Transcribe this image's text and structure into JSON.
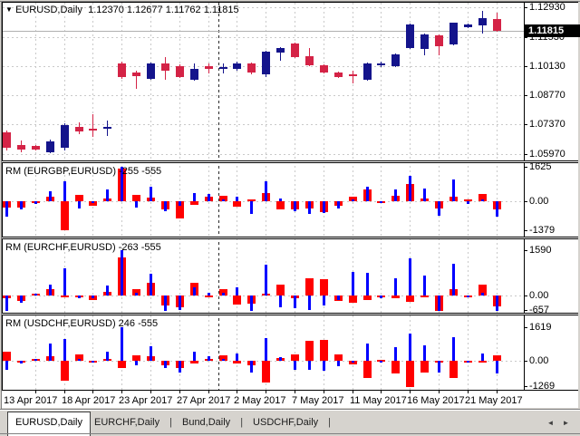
{
  "main_chart": {
    "menu_icon": "▼",
    "title_symbol": "EURUSD,Daily",
    "title_ohlc": "1.12370 1.12677 1.11762 1.11815",
    "current_price": "1.11815",
    "price_scale_ticks": [
      "1.12930",
      "1.11530",
      "1.10130",
      "1.08770",
      "1.07370",
      "1.05970"
    ]
  },
  "indicator_panes": [
    {
      "header": "RM (EURGBP,EURUSD) -255 -555",
      "scale_ticks": [
        "1625",
        "0.00",
        "-1379"
      ]
    },
    {
      "header": "RM (EURCHF,EURUSD) -263 -555",
      "scale_ticks": [
        "1590",
        "0.00",
        "-657"
      ]
    },
    {
      "header": "RM (USDCHF,EURUSD) 246 -555",
      "scale_ticks": [
        "1619",
        "0.00",
        "-1269"
      ]
    }
  ],
  "time_axis": {
    "labels": [
      "13 Apr 2017",
      "18 Apr 2017",
      "23 Apr 2017",
      "27 Apr 2017",
      "2 May 2017",
      "7 May 2017",
      "11 May 2017",
      "16 May 2017",
      "21 May 2017"
    ],
    "label_bar_index": [
      0,
      4,
      8,
      12,
      16,
      20,
      24,
      28,
      32
    ]
  },
  "tabs": {
    "items": [
      "EURUSD,Daily",
      "EURCHF,Daily",
      "Bund,Daily",
      "USDCHF,Daily"
    ],
    "active_index": 0,
    "separator": "|",
    "scroll_left": "◄",
    "scroll_right": "►"
  },
  "colors": {
    "bull_candle": "#14148c",
    "bear_candle": "#d42346",
    "hist_blue": "#0000ff",
    "hist_red": "#ff0000",
    "grid": "#c9c9c9",
    "chart_bg": "#ffffff",
    "chrome": "#d6d3ce",
    "current_price_line": "#b0b0b0"
  },
  "chart_data": [
    {
      "type": "candlestick",
      "title": "EURUSD,Daily",
      "ylim": [
        1.0597,
        1.1293
      ],
      "y_ticks": [
        1.1293,
        1.1153,
        1.1013,
        1.0877,
        1.0737,
        1.0597
      ],
      "current_price": 1.11815,
      "x_tick_labels": [
        "13 Apr 2017",
        "18 Apr 2017",
        "23 Apr 2017",
        "27 Apr 2017",
        "2 May 2017",
        "7 May 2017",
        "11 May 2017",
        "16 May 2017",
        "21 May 2017"
      ],
      "x_tick_bar_index": [
        0,
        4,
        8,
        12,
        16,
        20,
        24,
        28,
        32
      ],
      "month_separator_bar_index": 15,
      "grid": "dashed",
      "ohlc": [
        [
          1.07,
          1.0709,
          1.0614,
          1.0627
        ],
        [
          1.064,
          1.0661,
          1.0606,
          1.0619
        ],
        [
          1.0636,
          1.064,
          1.0614,
          1.0619
        ],
        [
          1.0606,
          1.0665,
          1.0602,
          1.0657
        ],
        [
          1.0627,
          1.0744,
          1.0614,
          1.0735
        ],
        [
          1.0726,
          1.0748,
          1.0692,
          1.0705
        ],
        [
          1.0717,
          1.0786,
          1.0679,
          1.0709
        ],
        [
          1.0717,
          1.0756,
          1.0683,
          1.0726
        ],
        [
          1.1028,
          1.1036,
          1.0955,
          1.0963
        ],
        [
          1.0985,
          1.0994,
          1.0908,
          1.0968
        ],
        [
          1.0955,
          1.1032,
          1.0951,
          1.1028
        ],
        [
          1.1028,
          1.1058,
          1.0951,
          1.0994
        ],
        [
          1.1015,
          1.1024,
          1.0959,
          1.0963
        ],
        [
          1.0951,
          1.1028,
          1.0946,
          1.1002
        ],
        [
          1.1015,
          1.1028,
          1.0981,
          1.1002
        ],
        [
          1.1006,
          1.1028,
          1.0981,
          1.1011
        ],
        [
          1.1002,
          1.1036,
          1.0993,
          1.1028
        ],
        [
          1.1028,
          1.1032,
          1.0976,
          1.0985
        ],
        [
          1.0976,
          1.1088,
          1.0963,
          1.1084
        ],
        [
          1.1079,
          1.1105,
          1.1041,
          1.1101
        ],
        [
          1.1122,
          1.1127,
          1.1054,
          1.1058
        ],
        [
          1.1062,
          1.1101,
          1.1015,
          1.1019
        ],
        [
          1.1019,
          1.1024,
          1.0981,
          1.0985
        ],
        [
          1.0985,
          1.0989,
          1.0959,
          1.0963
        ],
        [
          1.0976,
          1.0994,
          1.0933,
          1.0968
        ],
        [
          1.0951,
          1.1032,
          1.0946,
          1.1028
        ],
        [
          1.1019,
          1.1036,
          1.1011,
          1.1028
        ],
        [
          1.1015,
          1.1075,
          1.1011,
          1.1071
        ],
        [
          1.1101,
          1.1217,
          1.1097,
          1.1213
        ],
        [
          1.1097,
          1.117,
          1.1065,
          1.1166
        ],
        [
          1.1161,
          1.1166,
          1.1067,
          1.111
        ],
        [
          1.1118,
          1.1222,
          1.1114,
          1.1218
        ],
        [
          1.12,
          1.1217,
          1.1196,
          1.1213
        ],
        [
          1.1205,
          1.1277,
          1.117,
          1.1243
        ],
        [
          1.1237,
          1.12677,
          1.11762,
          1.11815
        ]
      ]
    },
    {
      "type": "bar",
      "title": "RM (EURGBP,EURUSD)",
      "ylim": [
        -1379,
        1625
      ],
      "y_ticks": [
        1625,
        0,
        -1379
      ],
      "series": [
        {
          "name": "wide-red",
          "values": [
            -310,
            -310,
            -90,
            200,
            -1379,
            310,
            -200,
            135,
            1550,
            310,
            175,
            -365,
            -810,
            -175,
            200,
            270,
            -270,
            90,
            405,
            -405,
            -405,
            -340,
            -500,
            -200,
            200,
            540,
            -95,
            245,
            810,
            135,
            -340,
            200,
            95,
            340,
            -405
          ]
        },
        {
          "name": "thin-blue",
          "values": [
            -740,
            -405,
            -135,
            470,
            945,
            -340,
            -90,
            540,
            1625,
            -310,
            675,
            -470,
            -200,
            405,
            340,
            100,
            200,
            -610,
            945,
            135,
            -470,
            -610,
            -540,
            -340,
            80,
            675,
            -60,
            540,
            1215,
            610,
            -675,
            1010,
            -135,
            80,
            -745
          ]
        }
      ]
    },
    {
      "type": "bar",
      "title": "RM (EURCHF,EURUSD)",
      "ylim": [
        -657,
        1590
      ],
      "y_ticks": [
        1590,
        0,
        -657
      ],
      "series": [
        {
          "name": "wide-red",
          "values": [
            -100,
            -190,
            75,
            230,
            -50,
            -60,
            -160,
            125,
            1330,
            230,
            440,
            -350,
            -400,
            440,
            -60,
            230,
            -315,
            -295,
            50,
            390,
            -100,
            600,
            580,
            -190,
            -240,
            -160,
            -60,
            -100,
            -230,
            -60,
            -555,
            230,
            -40,
            390,
            -390
          ]
        },
        {
          "name": "thin-blue",
          "values": [
            -555,
            -240,
            50,
            390,
            965,
            -80,
            -100,
            335,
            1590,
            100,
            755,
            -555,
            -505,
            300,
            80,
            80,
            280,
            -555,
            1070,
            -420,
            -450,
            -505,
            -350,
            -150,
            810,
            790,
            -80,
            600,
            1315,
            700,
            -555,
            1125,
            -60,
            100,
            -657
          ]
        }
      ]
    },
    {
      "type": "bar",
      "title": "RM (USDCHF,EURUSD)",
      "ylim": [
        -1269,
        1619
      ],
      "y_ticks": [
        1619,
        0,
        -1269
      ],
      "series": [
        {
          "name": "wide-red",
          "values": [
            455,
            -70,
            70,
            205,
            -965,
            305,
            -100,
            70,
            -345,
            275,
            205,
            -205,
            -345,
            -140,
            70,
            250,
            -140,
            -205,
            -1035,
            125,
            310,
            965,
            995,
            305,
            -165,
            -830,
            60,
            -620,
            -1269,
            -550,
            -70,
            -830,
            -40,
            -40,
            275
          ]
        },
        {
          "name": "thin-blue",
          "values": [
            -415,
            -140,
            70,
            830,
            1035,
            100,
            -70,
            440,
            1619,
            -205,
            700,
            -345,
            -550,
            415,
            205,
            80,
            345,
            -550,
            1105,
            170,
            -415,
            -415,
            -485,
            -275,
            -80,
            830,
            -60,
            665,
            1310,
            760,
            -550,
            1130,
            -60,
            345,
            -620
          ]
        }
      ]
    }
  ]
}
